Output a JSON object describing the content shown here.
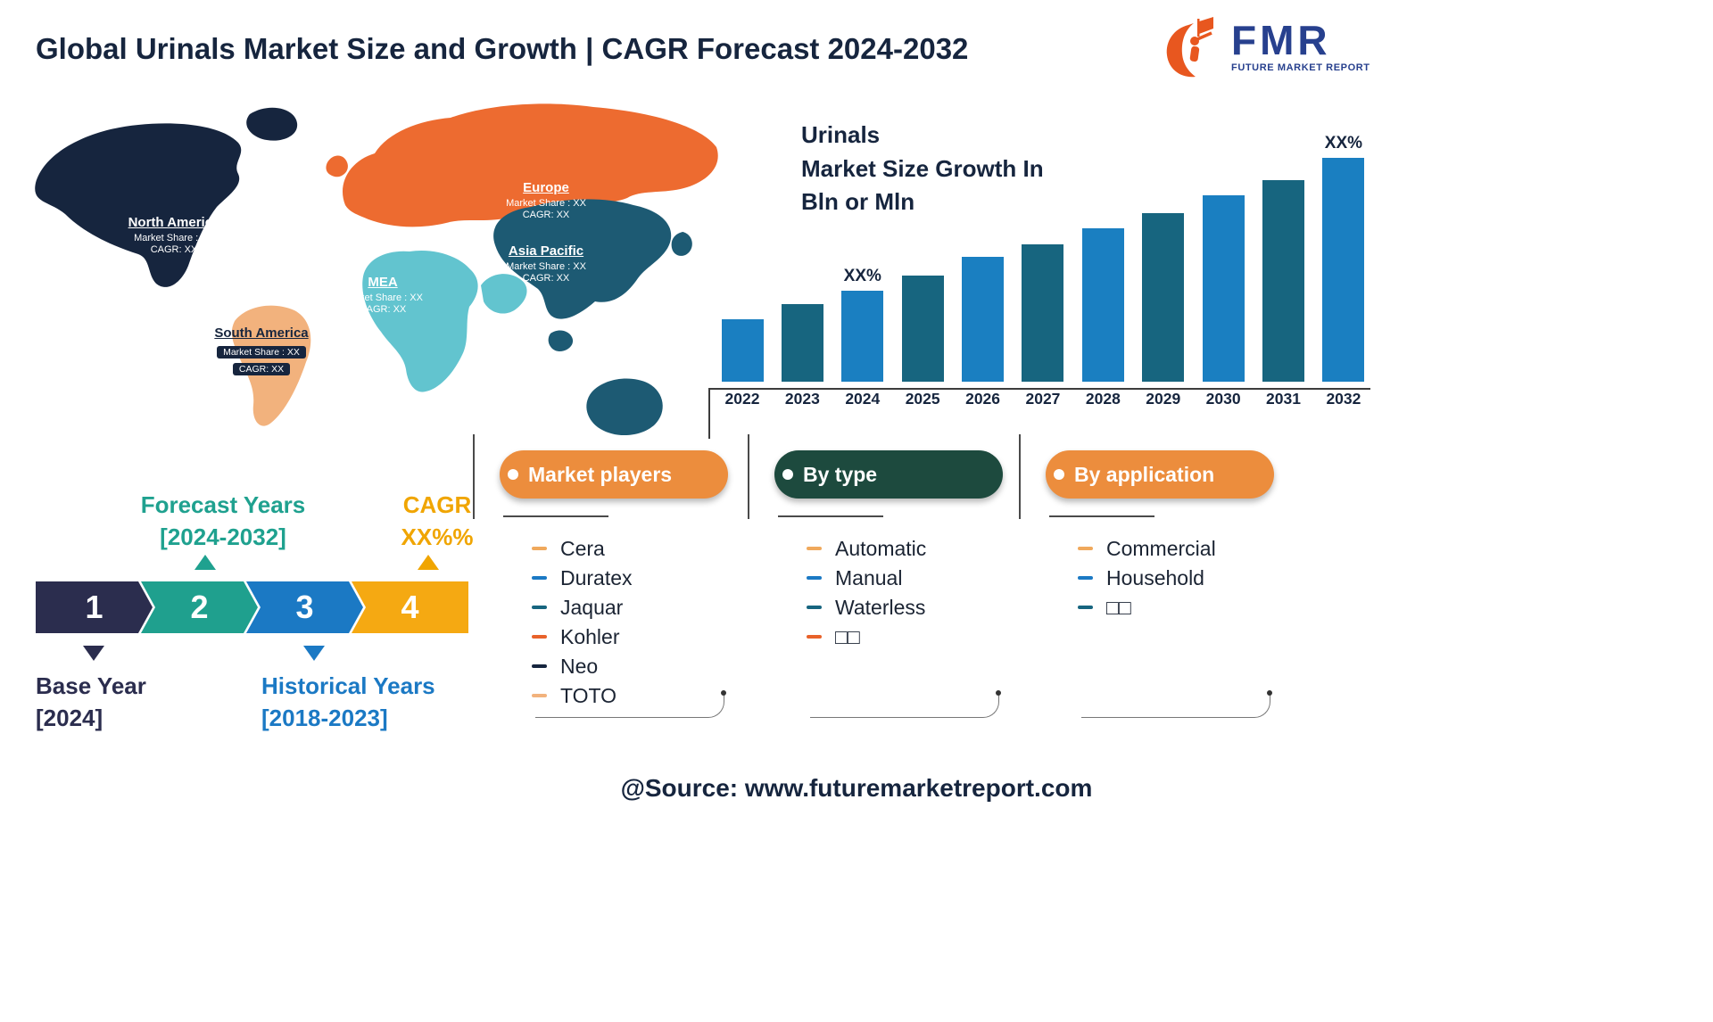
{
  "header": {
    "title": "Global Urinals Market Size and Growth | CAGR Forecast 2024-2032",
    "logo": {
      "abbr": "FMR",
      "name": "FUTURE MARKET REPORT"
    }
  },
  "map": {
    "regions": [
      {
        "name": "North America",
        "share": "Market Share : XX",
        "cagr": "CAGR: XX",
        "color": "#16253e"
      },
      {
        "name": "South America",
        "share": "Market Share : XX",
        "cagr": "CAGR: XX",
        "color": "#f2b27d"
      },
      {
        "name": "Europe",
        "share": "Market Share : XX",
        "cagr": "CAGR: XX",
        "color": "#ed6b30"
      },
      {
        "name": "MEA",
        "share": "Market Share : XX",
        "cagr": "CAGR: XX",
        "color": "#62c4cf"
      },
      {
        "name": "Asia Pacific",
        "share": "Market Share : XX",
        "cagr": "CAGR: XX",
        "color": "#1d5a73"
      }
    ]
  },
  "chart_data": {
    "type": "bar",
    "title_lines": [
      "Urinals",
      "Market Size Growth In",
      "Bln or Mln"
    ],
    "categories": [
      "2022",
      "2023",
      "2024",
      "2025",
      "2026",
      "2027",
      "2028",
      "2029",
      "2030",
      "2031",
      "2032"
    ],
    "values": [
      70,
      87,
      102,
      119,
      140,
      154,
      172,
      189,
      209,
      226,
      251
    ],
    "unit": "relative bar height (values unlabeled, shown as XX)",
    "annotations": [
      {
        "category": "2024",
        "label": "XX%"
      },
      {
        "category": "2032",
        "label": "XX%"
      }
    ],
    "bar_colors": [
      "#1a7fc1",
      "#17657f"
    ],
    "xlabel": "",
    "ylabel": "",
    "grid": false,
    "legend": false
  },
  "timeline": {
    "segments": [
      {
        "num": "1",
        "color": "#2b2d4e"
      },
      {
        "num": "2",
        "color": "#1fa08e"
      },
      {
        "num": "3",
        "color": "#1b79c4"
      },
      {
        "num": "4",
        "color": "#f5a912"
      }
    ],
    "forecast_years": {
      "line1": "Forecast Years",
      "line2": "[2024-2032]",
      "color": "#1fa18f"
    },
    "cagr": {
      "line1": "CAGR",
      "line2": "XX%%",
      "color": "#f0a500"
    },
    "base_year": {
      "line1": "Base Year",
      "line2": "[2024]",
      "color": "#2b2d4e"
    },
    "historical_years": {
      "line1": "Historical Years",
      "line2": "[2018-2023]",
      "color": "#1b79c4"
    }
  },
  "panels": [
    {
      "title": "Market players",
      "color": "#ec8d3d",
      "items": [
        {
          "label": "Cera",
          "marker": "#f0a95c"
        },
        {
          "label": "Duratex",
          "marker": "#1b79c4"
        },
        {
          "label": "Jaquar",
          "marker": "#17657f"
        },
        {
          "label": "Kohler",
          "marker": "#e8622a"
        },
        {
          "label": "Neo",
          "marker": "#16253e"
        },
        {
          "label": "TOTO",
          "marker": "#f2b27d"
        }
      ]
    },
    {
      "title": "By type",
      "color": "#1d4a3e",
      "items": [
        {
          "label": "Automatic",
          "marker": "#f0a95c"
        },
        {
          "label": "Manual",
          "marker": "#1b79c4"
        },
        {
          "label": "Waterless",
          "marker": "#17657f"
        },
        {
          "label": "□□",
          "marker": "#e8622a"
        }
      ]
    },
    {
      "title": "By application",
      "color": "#ec8d3d",
      "items": [
        {
          "label": "Commercial",
          "marker": "#f0a95c"
        },
        {
          "label": "Household",
          "marker": "#1b79c4"
        },
        {
          "label": "□□",
          "marker": "#17657f"
        }
      ]
    }
  ],
  "footer": {
    "source": "@Source: www.futuremarketreport.com"
  }
}
